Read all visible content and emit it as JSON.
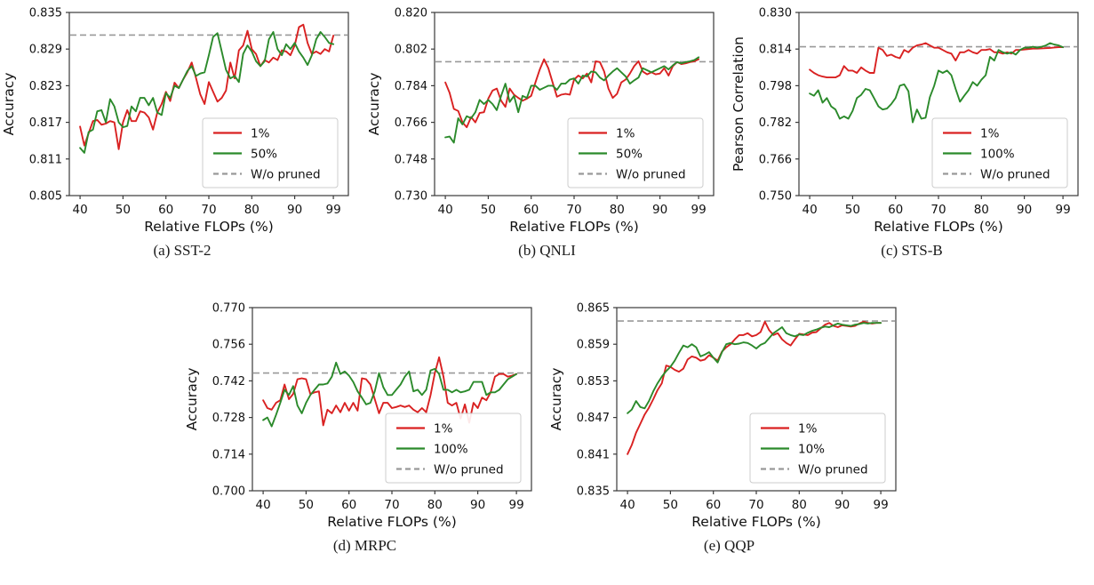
{
  "figure": {
    "background": "#ffffff",
    "series_red_color": "#d92121",
    "series_green_color": "#2b8a2b",
    "baseline_color": "#999999",
    "spine_color": "#3a3a3a"
  },
  "chart_data": [
    {
      "type": "line",
      "caption": "(a) SST-2",
      "xlabel": "Relative FLOPs (%)",
      "ylabel": "Accuracy",
      "xlim": [
        37.5,
        102.5
      ],
      "ylim": [
        0.805,
        0.835
      ],
      "xticks": [
        40,
        50,
        60,
        70,
        80,
        90,
        99
      ],
      "yticks": [
        0.805,
        0.811,
        0.817,
        0.823,
        0.829,
        0.835
      ],
      "x_start": 40,
      "x_end": 99,
      "grid": false,
      "legend_position": "lower right",
      "baseline": {
        "label": "W/o pruned",
        "value": 0.8313,
        "color": "#999999",
        "style": "dashed"
      },
      "series": [
        {
          "name": "1%",
          "color": "#d92121",
          "values": [
            0.8163,
            0.8132,
            0.8152,
            0.8172,
            0.8174,
            0.8166,
            0.8168,
            0.8172,
            0.817,
            0.8126,
            0.817,
            0.819,
            0.8172,
            0.8172,
            0.8188,
            0.8186,
            0.8178,
            0.8158,
            0.8186,
            0.82,
            0.822,
            0.8205,
            0.8235,
            0.8226,
            0.824,
            0.8252,
            0.8268,
            0.8243,
            0.8216,
            0.82,
            0.8236,
            0.822,
            0.8204,
            0.821,
            0.8222,
            0.8268,
            0.8242,
            0.8288,
            0.8296,
            0.832,
            0.829,
            0.8282,
            0.8262,
            0.8272,
            0.8268,
            0.8276,
            0.8272,
            0.8288,
            0.8286,
            0.828,
            0.8296,
            0.8326,
            0.833,
            0.83,
            0.8282,
            0.8286,
            0.8282,
            0.829,
            0.8286,
            0.8312
          ]
        },
        {
          "name": "50%",
          "color": "#2b8a2b",
          "values": [
            0.8128,
            0.812,
            0.8154,
            0.8158,
            0.8188,
            0.819,
            0.817,
            0.8208,
            0.8196,
            0.817,
            0.8162,
            0.8164,
            0.8196,
            0.8188,
            0.821,
            0.821,
            0.8198,
            0.821,
            0.8186,
            0.8182,
            0.8218,
            0.821,
            0.823,
            0.8226,
            0.824,
            0.8254,
            0.8262,
            0.8246,
            0.825,
            0.8252,
            0.828,
            0.831,
            0.8316,
            0.8286,
            0.8256,
            0.8242,
            0.8246,
            0.8236,
            0.8282,
            0.8296,
            0.8286,
            0.827,
            0.8262,
            0.827,
            0.8306,
            0.8318,
            0.829,
            0.828,
            0.8298,
            0.829,
            0.83,
            0.8286,
            0.8276,
            0.8264,
            0.828,
            0.8306,
            0.8318,
            0.831,
            0.83,
            0.8298
          ]
        }
      ]
    },
    {
      "type": "line",
      "caption": "(b) QNLI",
      "xlabel": "Relative FLOPs (%)",
      "ylabel": "Accuracy",
      "xlim": [
        37.5,
        102.5
      ],
      "ylim": [
        0.73,
        0.82
      ],
      "xticks": [
        40,
        50,
        60,
        70,
        80,
        90,
        99
      ],
      "yticks": [
        0.73,
        0.748,
        0.766,
        0.784,
        0.802,
        0.82
      ],
      "x_start": 40,
      "x_end": 99,
      "grid": false,
      "legend_position": "lower right",
      "baseline": {
        "label": "W/o pruned",
        "value": 0.7958,
        "color": "#999999",
        "style": "dashed"
      },
      "series": [
        {
          "name": "1%",
          "color": "#d92121",
          "values": [
            0.7856,
            0.7805,
            0.7726,
            0.7716,
            0.766,
            0.7636,
            0.7686,
            0.766,
            0.7706,
            0.771,
            0.7776,
            0.7816,
            0.7826,
            0.7766,
            0.7736,
            0.7826,
            0.7796,
            0.778,
            0.7766,
            0.7776,
            0.779,
            0.7856,
            0.792,
            0.797,
            0.7926,
            0.7856,
            0.7786,
            0.7796,
            0.78,
            0.7796,
            0.787,
            0.789,
            0.7876,
            0.79,
            0.7856,
            0.796,
            0.7956,
            0.791,
            0.7826,
            0.778,
            0.78,
            0.7856,
            0.787,
            0.79,
            0.7936,
            0.796,
            0.791,
            0.7896,
            0.7906,
            0.7896,
            0.79,
            0.7926,
            0.789,
            0.7936,
            0.7956,
            0.7946,
            0.795,
            0.7956,
            0.796,
            0.797
          ]
        },
        {
          "name": "50%",
          "color": "#2b8a2b",
          "values": [
            0.7586,
            0.759,
            0.756,
            0.768,
            0.765,
            0.769,
            0.768,
            0.771,
            0.777,
            0.775,
            0.777,
            0.775,
            0.772,
            0.779,
            0.785,
            0.776,
            0.779,
            0.771,
            0.779,
            0.778,
            0.784,
            0.784,
            0.782,
            0.783,
            0.784,
            0.784,
            0.782,
            0.785,
            0.785,
            0.787,
            0.7876,
            0.785,
            0.789,
            0.7886,
            0.791,
            0.7906,
            0.788,
            0.7866,
            0.789,
            0.791,
            0.7926,
            0.7906,
            0.7886,
            0.785,
            0.7866,
            0.788,
            0.7926,
            0.7916,
            0.7906,
            0.7916,
            0.7926,
            0.7936,
            0.792,
            0.794,
            0.7956,
            0.795,
            0.7956,
            0.796,
            0.7966,
            0.798
          ]
        }
      ]
    },
    {
      "type": "line",
      "caption": "(c) STS-B",
      "xlabel": "Relative FLOPs (%)",
      "ylabel": "Pearson Correlation",
      "xlim": [
        37.5,
        102.5
      ],
      "ylim": [
        0.75,
        0.83
      ],
      "xticks": [
        40,
        50,
        60,
        70,
        80,
        90,
        99
      ],
      "yticks": [
        0.75,
        0.766,
        0.782,
        0.798,
        0.814,
        0.83
      ],
      "x_start": 40,
      "x_end": 99,
      "grid": false,
      "legend_position": "lower right",
      "baseline": {
        "label": "W/o pruned",
        "value": 0.815,
        "color": "#999999",
        "style": "dashed"
      },
      "series": [
        {
          "name": "1%",
          "color": "#d92121",
          "values": [
            0.805,
            0.8036,
            0.8026,
            0.802,
            0.8016,
            0.8016,
            0.8016,
            0.8026,
            0.8066,
            0.8046,
            0.8046,
            0.8036,
            0.806,
            0.8046,
            0.8036,
            0.8036,
            0.8146,
            0.8136,
            0.811,
            0.8116,
            0.8106,
            0.81,
            0.8136,
            0.8126,
            0.8146,
            0.8156,
            0.816,
            0.8166,
            0.8156,
            0.8146,
            0.8146,
            0.8136,
            0.8126,
            0.812,
            0.809,
            0.8126,
            0.8126,
            0.8136,
            0.8126,
            0.812,
            0.8136,
            0.8136,
            0.814,
            0.8126,
            0.8126,
            0.812,
            0.8126,
            0.812,
            0.8136,
            0.8136,
            0.8138,
            0.814,
            0.8142,
            0.8142,
            0.8143,
            0.8144,
            0.8145,
            0.8147,
            0.8148,
            0.8148
          ]
        },
        {
          "name": "100%",
          "color": "#2b8a2b",
          "values": [
            0.7946,
            0.7936,
            0.796,
            0.7906,
            0.7926,
            0.789,
            0.7876,
            0.7836,
            0.7846,
            0.7836,
            0.787,
            0.7926,
            0.794,
            0.7966,
            0.796,
            0.7926,
            0.789,
            0.7876,
            0.788,
            0.79,
            0.7926,
            0.798,
            0.7986,
            0.7956,
            0.782,
            0.7876,
            0.7836,
            0.784,
            0.793,
            0.798,
            0.8046,
            0.8036,
            0.8046,
            0.8026,
            0.7966,
            0.791,
            0.7936,
            0.796,
            0.7996,
            0.798,
            0.8006,
            0.8026,
            0.8106,
            0.809,
            0.8136,
            0.8126,
            0.812,
            0.8126,
            0.8116,
            0.8136,
            0.8146,
            0.8146,
            0.815,
            0.8146,
            0.815,
            0.8156,
            0.8166,
            0.816,
            0.8156,
            0.8148
          ]
        }
      ]
    },
    {
      "type": "line",
      "caption": "(d) MRPC",
      "xlabel": "Relative FLOPs (%)",
      "ylabel": "Accuracy",
      "xlim": [
        37.5,
        102.5
      ],
      "ylim": [
        0.7,
        0.77
      ],
      "xticks": [
        40,
        50,
        60,
        70,
        80,
        90,
        99
      ],
      "yticks": [
        0.7,
        0.714,
        0.728,
        0.742,
        0.756,
        0.77
      ],
      "x_start": 40,
      "x_end": 99,
      "grid": false,
      "legend_position": "lower right",
      "baseline": {
        "label": "W/o pruned",
        "value": 0.745,
        "color": "#999999",
        "style": "dashed"
      },
      "series": [
        {
          "name": "1%",
          "color": "#d92121",
          "values": [
            0.7346,
            0.7316,
            0.731,
            0.7336,
            0.7346,
            0.7406,
            0.735,
            0.737,
            0.7426,
            0.743,
            0.7426,
            0.737,
            0.7376,
            0.738,
            0.725,
            0.731,
            0.7296,
            0.7326,
            0.73,
            0.7336,
            0.7306,
            0.7336,
            0.7306,
            0.743,
            0.7426,
            0.7406,
            0.735,
            0.7296,
            0.7336,
            0.7336,
            0.7316,
            0.732,
            0.7326,
            0.732,
            0.7326,
            0.731,
            0.73,
            0.7316,
            0.73,
            0.7366,
            0.745,
            0.751,
            0.7436,
            0.7336,
            0.7326,
            0.7336,
            0.7276,
            0.733,
            0.726,
            0.7336,
            0.7316,
            0.7356,
            0.7346,
            0.7376,
            0.7436,
            0.7446,
            0.7446,
            0.7436,
            0.744,
            0.7446
          ]
        },
        {
          "name": "100%",
          "color": "#2b8a2b",
          "values": [
            0.727,
            0.728,
            0.7246,
            0.729,
            0.7336,
            0.7386,
            0.7366,
            0.74,
            0.7326,
            0.7296,
            0.7336,
            0.7366,
            0.7386,
            0.7406,
            0.7406,
            0.741,
            0.7436,
            0.749,
            0.7446,
            0.7456,
            0.744,
            0.7416,
            0.738,
            0.7356,
            0.733,
            0.7336,
            0.738,
            0.745,
            0.7396,
            0.7366,
            0.7366,
            0.7386,
            0.7406,
            0.7436,
            0.7456,
            0.738,
            0.7386,
            0.7366,
            0.7386,
            0.746,
            0.7466,
            0.7446,
            0.7386,
            0.7386,
            0.7376,
            0.7386,
            0.7376,
            0.738,
            0.7386,
            0.7416,
            0.7416,
            0.7416,
            0.7366,
            0.7376,
            0.7376,
            0.7386,
            0.7406,
            0.7426,
            0.7436,
            0.7446
          ]
        }
      ]
    },
    {
      "type": "line",
      "caption": "(e) QQP",
      "xlabel": "Relative FLOPs (%)",
      "ylabel": "Accuracy",
      "xlim": [
        37.5,
        102.5
      ],
      "ylim": [
        0.835,
        0.865
      ],
      "xticks": [
        40,
        50,
        60,
        70,
        80,
        90,
        99
      ],
      "yticks": [
        0.835,
        0.841,
        0.847,
        0.853,
        0.859,
        0.865
      ],
      "x_start": 40,
      "x_end": 99,
      "grid": false,
      "legend_position": "lower right",
      "baseline": {
        "label": "W/o pruned",
        "value": 0.8628,
        "color": "#999999",
        "style": "dashed"
      },
      "series": [
        {
          "name": "1%",
          "color": "#d92121",
          "values": [
            0.841,
            0.8425,
            0.8445,
            0.846,
            0.8475,
            0.8486,
            0.85,
            0.8515,
            0.8526,
            0.8555,
            0.8553,
            0.8548,
            0.8545,
            0.855,
            0.8565,
            0.857,
            0.8568,
            0.8563,
            0.8565,
            0.8572,
            0.8568,
            0.8563,
            0.8578,
            0.8585,
            0.859,
            0.8598,
            0.8605,
            0.8605,
            0.8608,
            0.8603,
            0.8605,
            0.861,
            0.8627,
            0.8613,
            0.8605,
            0.8608,
            0.8598,
            0.8592,
            0.8588,
            0.8598,
            0.8607,
            0.8606,
            0.8605,
            0.8609,
            0.861,
            0.8616,
            0.8622,
            0.8625,
            0.862,
            0.8618,
            0.8621,
            0.862,
            0.8619,
            0.862,
            0.8624,
            0.8627,
            0.8625,
            0.8624,
            0.8625,
            0.8625
          ]
        },
        {
          "name": "10%",
          "color": "#2b8a2b",
          "values": [
            0.8477,
            0.8483,
            0.8497,
            0.8487,
            0.8485,
            0.8497,
            0.8513,
            0.8526,
            0.8537,
            0.8546,
            0.8553,
            0.8563,
            0.8576,
            0.8588,
            0.8585,
            0.859,
            0.8585,
            0.857,
            0.8573,
            0.8577,
            0.8568,
            0.856,
            0.8577,
            0.859,
            0.8592,
            0.859,
            0.8591,
            0.8593,
            0.8592,
            0.8588,
            0.8583,
            0.8589,
            0.8592,
            0.86,
            0.8608,
            0.8613,
            0.8618,
            0.8608,
            0.8605,
            0.8603,
            0.8606,
            0.8605,
            0.8609,
            0.8612,
            0.8614,
            0.8617,
            0.8619,
            0.8618,
            0.8621,
            0.8624,
            0.8622,
            0.8621,
            0.862,
            0.8622,
            0.8623,
            0.8625,
            0.8624,
            0.8625,
            0.8625,
            0.8625
          ]
        }
      ]
    }
  ]
}
